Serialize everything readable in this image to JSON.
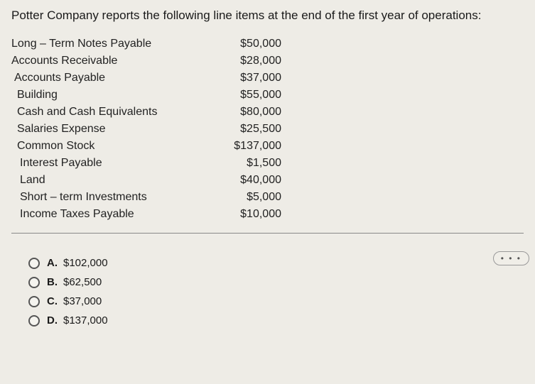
{
  "title": "Potter Company reports the following line items at the end of the first year of operations:",
  "lineItems": [
    {
      "name": "Long – Term Notes Payable",
      "value": "$50,000",
      "indent": 0
    },
    {
      "name": "Accounts Receivable",
      "value": "$28,000",
      "indent": 0
    },
    {
      "name": "Accounts Payable",
      "value": "$37,000",
      "indent": 1
    },
    {
      "name": "Building",
      "value": "$55,000",
      "indent": 2
    },
    {
      "name": "Cash and Cash Equivalents",
      "value": "$80,000",
      "indent": 2
    },
    {
      "name": "Salaries Expense",
      "value": "$25,500",
      "indent": 2
    },
    {
      "name": "Common Stock",
      "value": "$137,000",
      "indent": 2
    },
    {
      "name": "Interest Payable",
      "value": "$1,500",
      "indent": 3
    },
    {
      "name": "Land",
      "value": "$40,000",
      "indent": 3
    },
    {
      "name": "Short – term Investments",
      "value": "$5,000",
      "indent": 3
    },
    {
      "name": "Income Taxes Payable",
      "value": "$10,000",
      "indent": 3
    }
  ],
  "options": [
    {
      "letter": "A.",
      "text": "$102,000"
    },
    {
      "letter": "B.",
      "text": "$62,500"
    },
    {
      "letter": "C.",
      "text": "$37,000"
    },
    {
      "letter": "D.",
      "text": "$137,000"
    }
  ],
  "moreLabel": "• • •"
}
